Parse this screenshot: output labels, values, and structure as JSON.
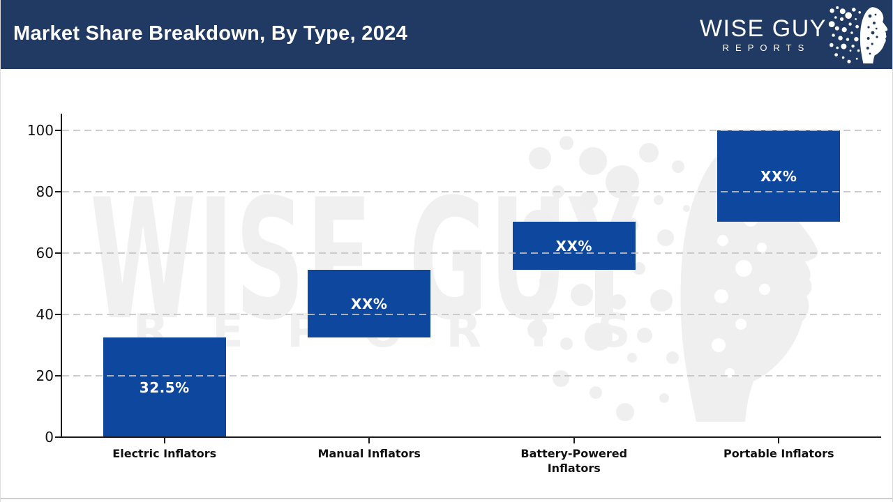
{
  "header": {
    "title": "Market Share Breakdown, By Type, 2024",
    "logo": {
      "line1": "WISE GUY",
      "line2": "REPORTS"
    }
  },
  "watermark": {
    "line1": "WISE GUY",
    "line2": "REPORTS"
  },
  "colors": {
    "header_bg": "#213a63",
    "bar": "#0d479e",
    "bar_label_text": "#ffffff",
    "axis": "#1a1a1a",
    "gridline": "#c3c3c3",
    "watermark": "#f0f0f0"
  },
  "chart_data": {
    "type": "bar",
    "subtype": "waterfall",
    "title": "Market Share Breakdown, By Type, 2024",
    "categories": [
      "Electric Inflators",
      "Manual Inflators",
      "Battery-Powered Inflators",
      "Portable Inflators"
    ],
    "segments": [
      {
        "category": "Electric Inflators",
        "start": 0,
        "end": 32.5,
        "label": "32.5%"
      },
      {
        "category": "Manual Inflators",
        "start": 32.5,
        "end": 54.5,
        "label": "XX%"
      },
      {
        "category": "Battery-Powered Inflators",
        "start": 54.5,
        "end": 70.2,
        "label": "XX%"
      },
      {
        "category": "Portable Inflators",
        "start": 70.2,
        "end": 100,
        "label": "XX%"
      }
    ],
    "unit": "%",
    "xlabel": "",
    "ylabel": "",
    "ylim": [
      0,
      100
    ],
    "yticks": [
      0,
      20,
      40,
      60,
      80,
      100
    ],
    "grid": "horizontal-dashed",
    "legend": "none"
  }
}
